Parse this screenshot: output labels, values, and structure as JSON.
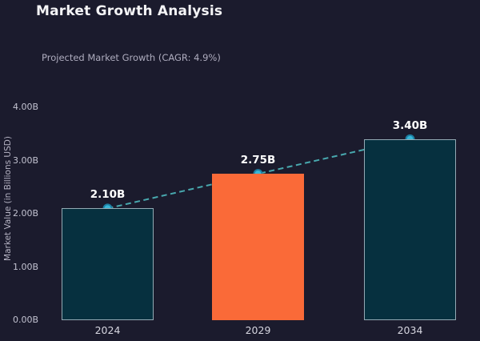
{
  "header": {
    "title": "Market Growth Analysis",
    "subtitle": "Projected Market Growth (CAGR: 4.9%)"
  },
  "chart_data": {
    "type": "bar",
    "title": "Market Growth Analysis",
    "subtitle": "Projected Market Growth (CAGR: 4.9%)",
    "categories": [
      "2024",
      "2029",
      "2034"
    ],
    "values": [
      2.1,
      2.75,
      3.4
    ],
    "value_labels": [
      "2.10B",
      "2.75B",
      "3.40B"
    ],
    "xlabel": "",
    "ylabel": "Market Value (in Billions USD)",
    "ylim": [
      0,
      4
    ],
    "yticks": [
      0,
      1,
      2,
      3,
      4
    ],
    "ytick_labels": [
      "0.00B",
      "1.00B",
      "2.00B",
      "3.00B",
      "4.00B"
    ],
    "grid": false,
    "legend": false,
    "overlay_line": {
      "type": "line",
      "style": "dashed",
      "x": [
        "2024",
        "2029",
        "2034"
      ],
      "values": [
        2.1,
        2.75,
        3.4
      ],
      "marker": "circle"
    },
    "colors": {
      "background": "#1b1b2d",
      "bar_default": "#06303f",
      "bar_border": "#93aab4",
      "bar_highlight": "#fa6a38",
      "highlight_index": 1,
      "trend_line": "#48a8ae",
      "marker_fill": "#38b7d8",
      "marker_ring": "#1d7fa3",
      "title_text": "#f4f4f6",
      "subtitle_text": "#aeacbe",
      "axis_text": "#c2c2d0",
      "value_label_text": "#ffffff"
    }
  }
}
